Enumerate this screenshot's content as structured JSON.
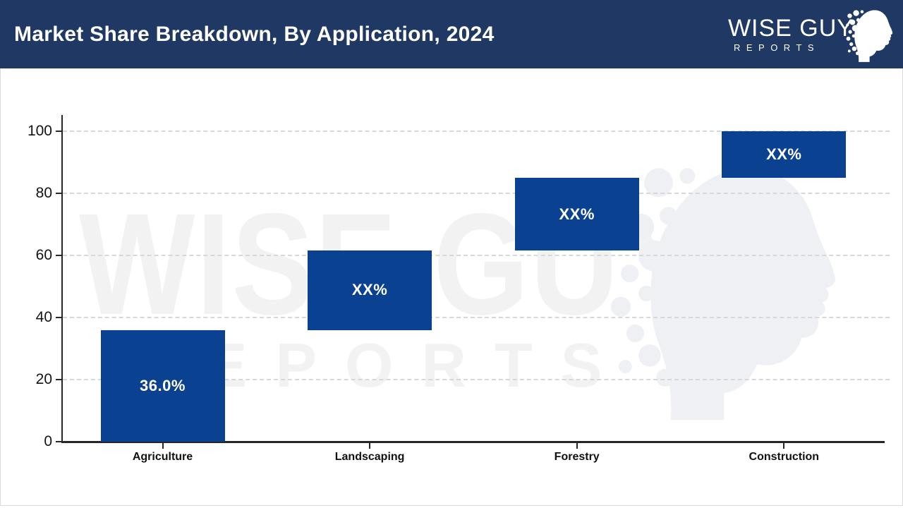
{
  "header": {
    "title": "Market Share Breakdown, By Application, 2024",
    "background_color": "#1f3864",
    "logo": {
      "line1": "WISE GUY",
      "line2": "REPORTS",
      "head_icon": "dotted-head-profile"
    }
  },
  "watermark": {
    "line1": "WISE GUY",
    "line2": "REPORTS",
    "head_icon": "dotted-head-profile"
  },
  "chart_data": {
    "type": "bar",
    "variant": "waterfall",
    "title": "Market Share Breakdown, By Application, 2024",
    "categories": [
      "Agriculture",
      "Landscaping",
      "Forestry",
      "Construction"
    ],
    "bars": [
      {
        "category": "Agriculture",
        "start": 0,
        "end": 36,
        "value": 36,
        "label": "36.0%"
      },
      {
        "category": "Landscaping",
        "start": 36,
        "end": 61.5,
        "value": 25.5,
        "label": "XX%"
      },
      {
        "category": "Forestry",
        "start": 61.5,
        "end": 85,
        "value": 23.5,
        "label": "XX%"
      },
      {
        "category": "Construction",
        "start": 85,
        "end": 100,
        "value": 15,
        "label": "XX%"
      }
    ],
    "xlabel": "",
    "ylabel": "",
    "ylim": [
      0,
      100
    ],
    "yticks": [
      0,
      20,
      40,
      60,
      80,
      100
    ],
    "grid": "horizontal-dashed",
    "legend": false,
    "bar_color": "#0b4191",
    "bar_label_color": "#ffffff",
    "axis_color": "#262626",
    "gridline_color": "#d8d8d8"
  }
}
